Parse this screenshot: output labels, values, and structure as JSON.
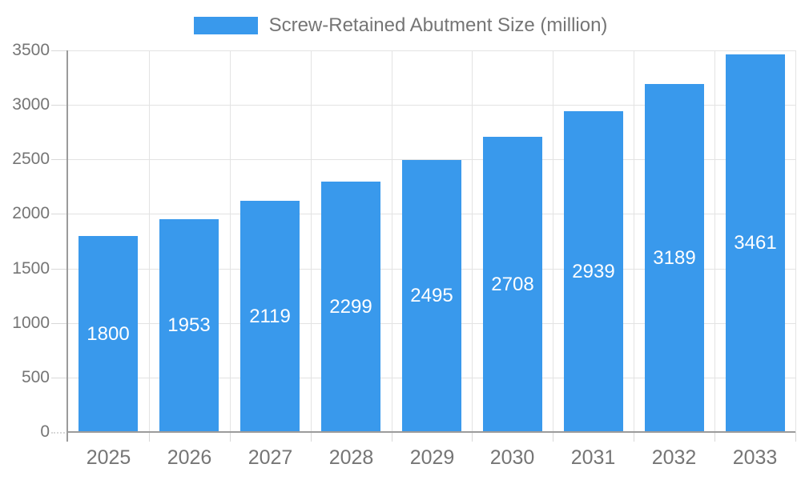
{
  "legend": {
    "label": "Screw-Retained Abutment Size (million)"
  },
  "chart_data": {
    "type": "bar",
    "title": "",
    "series_name": "Screw-Retained Abutment Size (million)",
    "categories": [
      "2025",
      "2026",
      "2027",
      "2028",
      "2029",
      "2030",
      "2031",
      "2032",
      "2033"
    ],
    "values": [
      1800,
      1953,
      2119,
      2299,
      2495,
      2708,
      2939,
      3189,
      3461
    ],
    "xlabel": "",
    "ylabel": "",
    "ylim": [
      0,
      3500
    ],
    "yticks": [
      0,
      500,
      1000,
      1500,
      2000,
      2500,
      3000,
      3500
    ],
    "grid": true,
    "legend_position": "top-center",
    "value_labels": "inside-center",
    "colors": {
      "bar": "#3999EC",
      "value_label": "#FFFFFF",
      "axis_text": "#757575",
      "axis_line": "#9B9B9B",
      "gridline": "#E3E3E3",
      "tick": "#D8D8D8",
      "background": "#FFFFFF"
    }
  }
}
